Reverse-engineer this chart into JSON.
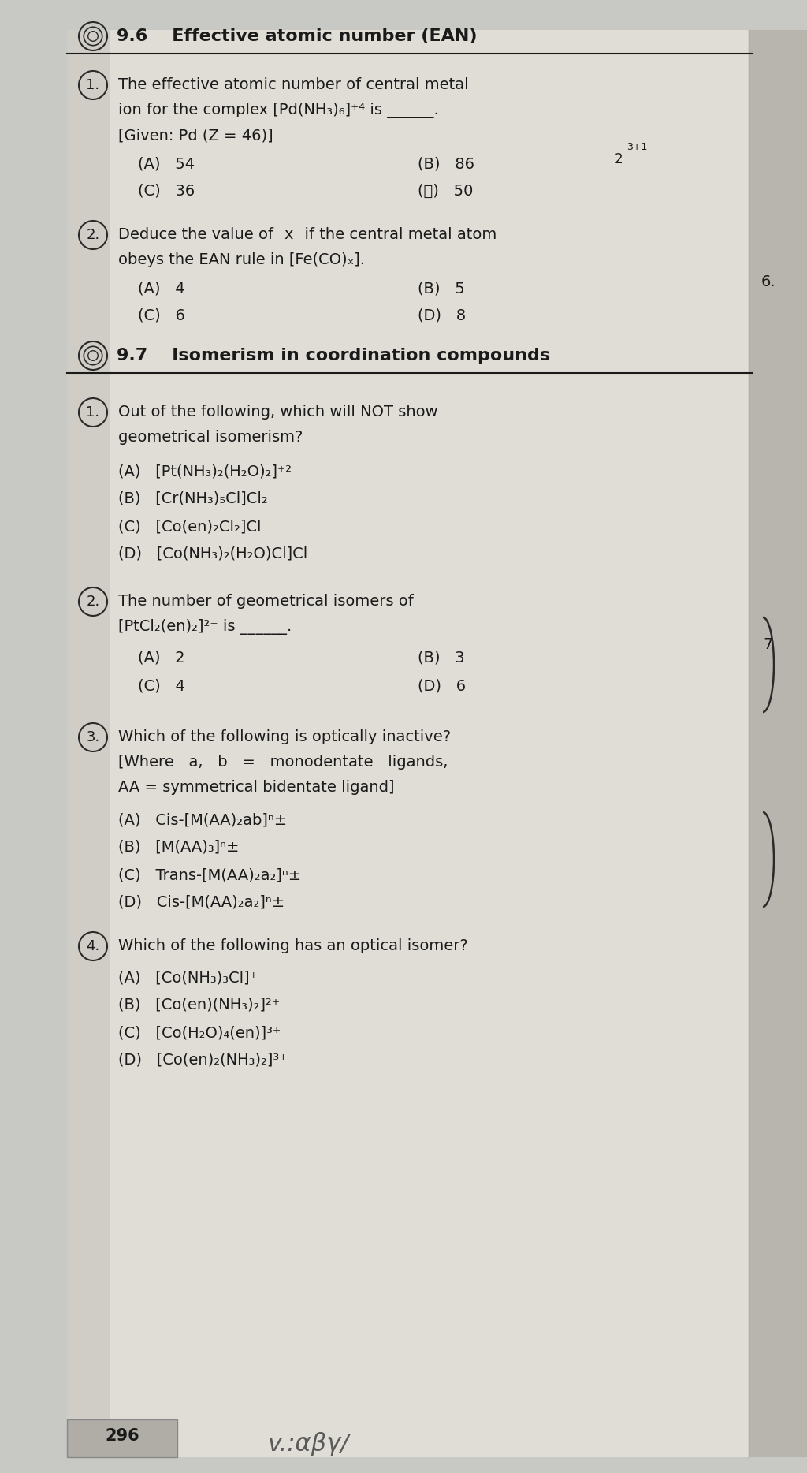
{
  "bg_color": "#c8c8c4",
  "page_bg": "#dcdcd8",
  "text_color": "#1a1a1a",
  "section_96_title": "9.6    Effective atomic number (EAN)",
  "section_97_title": "9.7    Isomerism in coordination compounds",
  "page_number": "296"
}
